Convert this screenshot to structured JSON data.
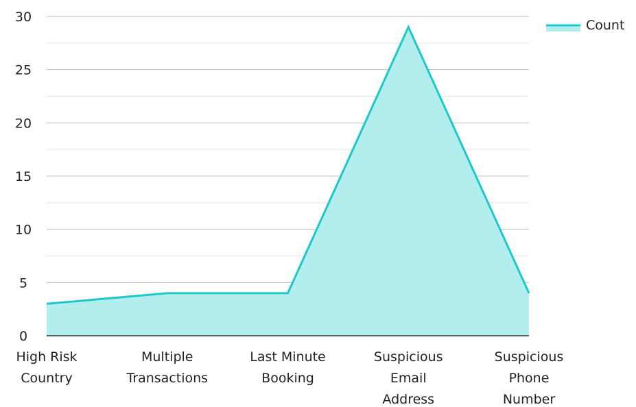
{
  "chart_data": {
    "type": "area",
    "title": "",
    "xlabel": "",
    "ylabel": "",
    "categories": [
      [
        "High Risk",
        "Country"
      ],
      [
        "Multiple",
        "Transactions"
      ],
      [
        "Last Minute",
        "Booking"
      ],
      [
        "Suspicious",
        "Email",
        "Address"
      ],
      [
        "Suspicious",
        "Phone",
        "Number"
      ]
    ],
    "series": [
      {
        "name": "Count",
        "values": [
          3,
          4,
          4,
          29,
          4
        ],
        "color": "#1ec8c8",
        "fill": "#b2eeee"
      }
    ],
    "ylim": [
      0,
      30
    ],
    "yticks": [
      0,
      5,
      10,
      15,
      20,
      25,
      30
    ],
    "grid": true,
    "legend": "top-right",
    "colors": {
      "grid_major": "#bdbdbd",
      "grid_minor": "#e3e3e3",
      "axis": "#333333"
    }
  }
}
